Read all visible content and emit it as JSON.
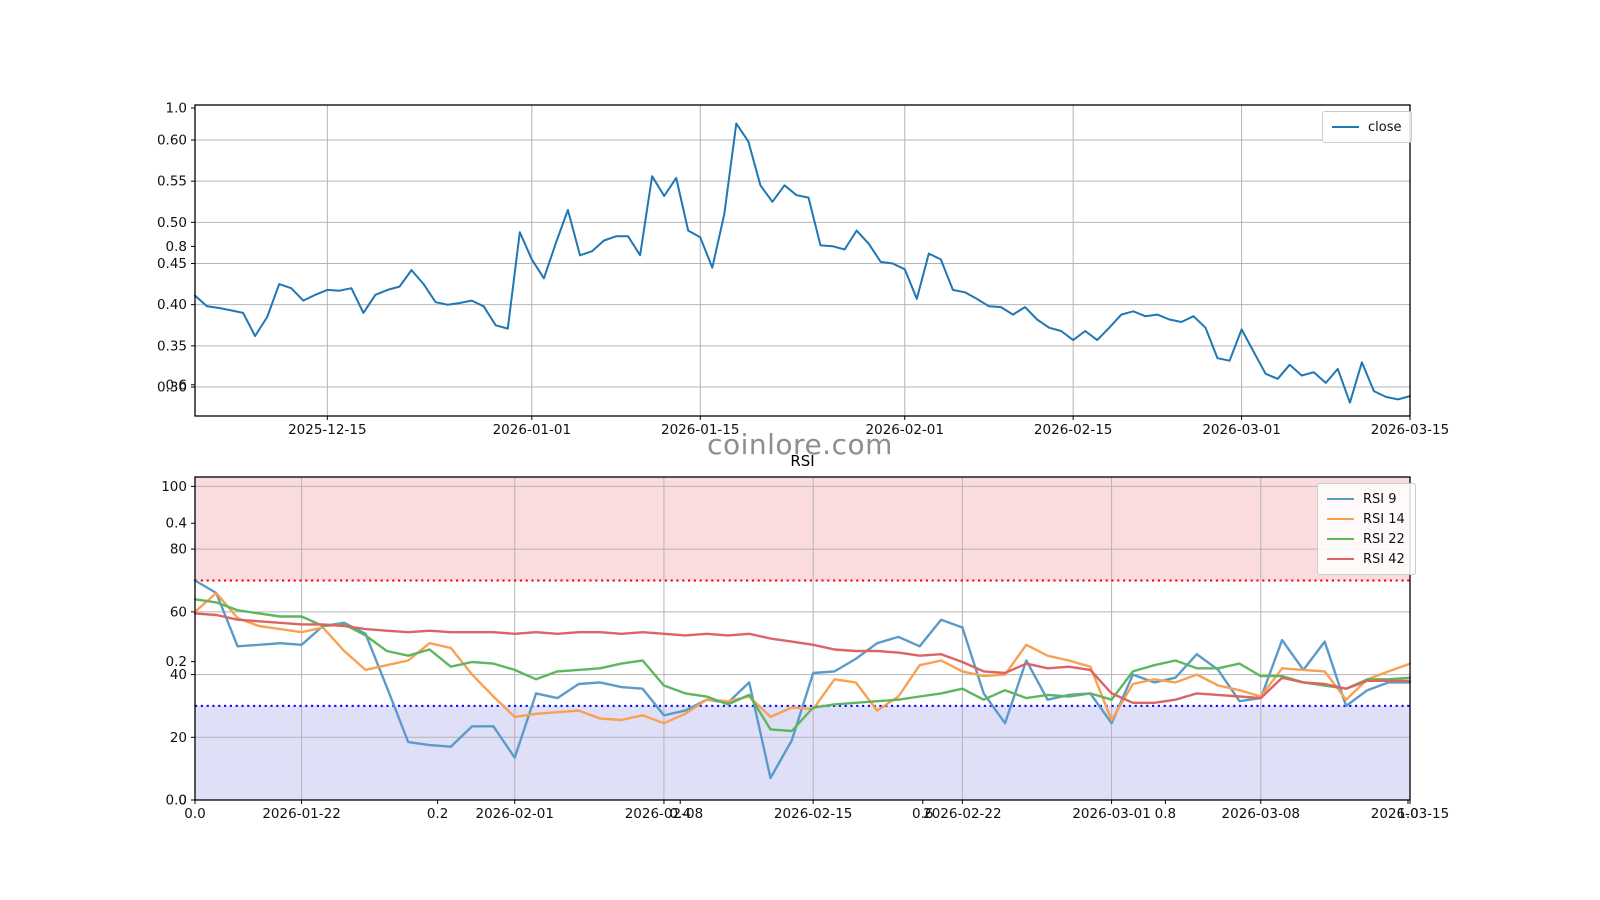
{
  "watermark": "coinlore.com",
  "chart_data": [
    {
      "type": "line",
      "title": "",
      "xlabel": "",
      "ylabel": "",
      "grid": true,
      "legend_position": "upper right",
      "start_date": "2025-12-04",
      "ylim": [
        0.2648,
        0.6425
      ],
      "y_ticks": [
        {
          "label": "0.60",
          "value": 0.6
        },
        {
          "label": "0.55",
          "value": 0.55
        },
        {
          "label": "0.50",
          "value": 0.5
        },
        {
          "label": "0.45",
          "value": 0.45
        },
        {
          "label": "0.40",
          "value": 0.4
        },
        {
          "label": "0.35",
          "value": 0.35
        },
        {
          "label": "0.30",
          "value": 0.3
        }
      ],
      "x_ticks": [
        {
          "label": "2025-12-15",
          "day": 11
        },
        {
          "label": "2026-01-01",
          "day": 28
        },
        {
          "label": "2026-01-15",
          "day": 42
        },
        {
          "label": "2026-02-01",
          "day": 59
        },
        {
          "label": "2026-02-15",
          "day": 73
        },
        {
          "label": "2026-03-01",
          "day": 87
        },
        {
          "label": "2026-03-15",
          "day": 101
        }
      ],
      "series": [
        {
          "name": "close",
          "color": "#1f77b4",
          "values": [
            0.411,
            0.398,
            0.396,
            0.393,
            0.39,
            0.362,
            0.385,
            0.425,
            0.42,
            0.405,
            0.412,
            0.418,
            0.417,
            0.42,
            0.39,
            0.412,
            0.418,
            0.422,
            0.442,
            0.425,
            0.403,
            0.4,
            0.402,
            0.405,
            0.398,
            0.375,
            0.371,
            0.488,
            0.455,
            0.432,
            0.475,
            0.515,
            0.46,
            0.465,
            0.478,
            0.483,
            0.483,
            0.46,
            0.556,
            0.532,
            0.554,
            0.49,
            0.482,
            0.445,
            0.51,
            0.62,
            0.598,
            0.545,
            0.525,
            0.545,
            0.533,
            0.53,
            0.472,
            0.471,
            0.467,
            0.49,
            0.474,
            0.452,
            0.45,
            0.443,
            0.407,
            0.462,
            0.455,
            0.418,
            0.415,
            0.407,
            0.398,
            0.397,
            0.388,
            0.397,
            0.382,
            0.372,
            0.368,
            0.357,
            0.368,
            0.357,
            0.372,
            0.388,
            0.392,
            0.386,
            0.388,
            0.382,
            0.379,
            0.386,
            0.372,
            0.335,
            0.332,
            0.37,
            0.343,
            0.316,
            0.31,
            0.327,
            0.314,
            0.318,
            0.305,
            0.322,
            0.281,
            0.33,
            0.295,
            0.288,
            0.285,
            0.289
          ]
        }
      ]
    },
    {
      "type": "line",
      "title": "RSI",
      "xlabel": "",
      "ylabel": "",
      "grid": true,
      "legend_position": "upper right",
      "start_date": "2026-01-17",
      "ylim": [
        0,
        103
      ],
      "overbought_level": 70,
      "oversold_level": 30,
      "overbought_line_color": "#ff0000",
      "oversold_line_color": "#0000ff",
      "overbought_band_color": "#fbdcde",
      "oversold_band_color": "#dfdff8",
      "y_ticks": [
        {
          "label": "100",
          "value": 100
        },
        {
          "label": "80",
          "value": 80
        },
        {
          "label": "60",
          "value": 60
        },
        {
          "label": "40",
          "value": 40
        },
        {
          "label": "20",
          "value": 20
        },
        {
          "label": "0",
          "value": 0
        }
      ],
      "x_ticks": [
        {
          "label": "2026-01-22",
          "day": 5
        },
        {
          "label": "2026-02-01",
          "day": 15
        },
        {
          "label": "2026-02-08",
          "day": 22
        },
        {
          "label": "2026-02-15",
          "day": 29
        },
        {
          "label": "2026-02-22",
          "day": 36
        },
        {
          "label": "2026-03-01",
          "day": 43
        },
        {
          "label": "2026-03-08",
          "day": 50
        },
        {
          "label": "2026-03-15",
          "day": 57
        }
      ],
      "series": [
        {
          "name": "RSI 9",
          "color": "#5b9bc9",
          "values": [
            70,
            66,
            49,
            49.5,
            50,
            49.5,
            55.5,
            56.5,
            53,
            36,
            18.5,
            17.5,
            17,
            23.5,
            23.5,
            13.5,
            34,
            32.5,
            37,
            37.5,
            36,
            35.5,
            27,
            28.5,
            32,
            31,
            37.5,
            7,
            19,
            40.5,
            41,
            45,
            50,
            52,
            49,
            57.5,
            55,
            34,
            24.5,
            44.5,
            32,
            33.5,
            34,
            24.5,
            40,
            37.5,
            39,
            46.5,
            41.5,
            31.5,
            32.5,
            51,
            41.5,
            50.5,
            30,
            35,
            37.5,
            37.5
          ]
        },
        {
          "name": "RSI 14",
          "color": "#f9a153",
          "values": [
            60,
            66,
            58,
            55.5,
            54.5,
            53.5,
            55,
            47.5,
            41.5,
            43,
            44.5,
            50,
            48.5,
            40,
            33,
            26.5,
            27.5,
            28,
            28.5,
            26,
            25.5,
            27,
            24.5,
            27.5,
            32,
            31.5,
            33,
            26.5,
            29.5,
            29,
            38.5,
            37.5,
            28.5,
            33,
            43,
            44.5,
            41,
            39.5,
            40,
            49.5,
            46,
            44.5,
            42.5,
            25.5,
            37,
            38.5,
            37.5,
            40,
            36.5,
            35,
            33,
            42,
            41.5,
            41,
            32,
            38.5,
            41,
            43.5
          ]
        },
        {
          "name": "RSI 22",
          "color": "#5eb65e",
          "values": [
            64,
            63,
            60.5,
            59.5,
            58.5,
            58.5,
            55.5,
            56,
            52.5,
            47.5,
            46,
            48,
            42.5,
            44,
            43.5,
            41.5,
            38.5,
            41,
            41.5,
            42,
            43.5,
            44.5,
            36.5,
            34,
            33,
            30.5,
            33.5,
            22.5,
            22,
            29.5,
            30.5,
            31,
            31.5,
            32,
            33,
            34,
            35.5,
            32,
            35,
            32.5,
            33.5,
            33,
            34,
            32,
            41,
            43,
            44.5,
            42,
            42,
            43.5,
            39.5,
            39.5,
            37.5,
            36.5,
            35.5,
            38.5,
            38.5,
            39
          ]
        },
        {
          "name": "RSI 42",
          "color": "#dd6465",
          "values": [
            59.5,
            59,
            57.5,
            57,
            56.5,
            56,
            56,
            55.5,
            54.5,
            54,
            53.5,
            54,
            53.5,
            53.5,
            53.5,
            53,
            53.5,
            53,
            53.5,
            53.5,
            53,
            53.5,
            53,
            52.5,
            53,
            52.5,
            53,
            51.5,
            50.5,
            49.5,
            48,
            47.5,
            47.5,
            47,
            46,
            46.5,
            44,
            41,
            40.5,
            43.5,
            42,
            42.5,
            41.5,
            34,
            31,
            31,
            32,
            34,
            33.5,
            33,
            32.5,
            39,
            37.5,
            37,
            35.5,
            38,
            38,
            38
          ]
        }
      ]
    }
  ],
  "overlay_axis": {
    "y_labels": [
      "1.0",
      "0.8",
      "0.6",
      "0.4",
      "0.2",
      "0.0"
    ],
    "x_labels": [
      "0.0",
      "0.2",
      "0.4",
      "0.6",
      "0.8",
      "1.0"
    ]
  }
}
